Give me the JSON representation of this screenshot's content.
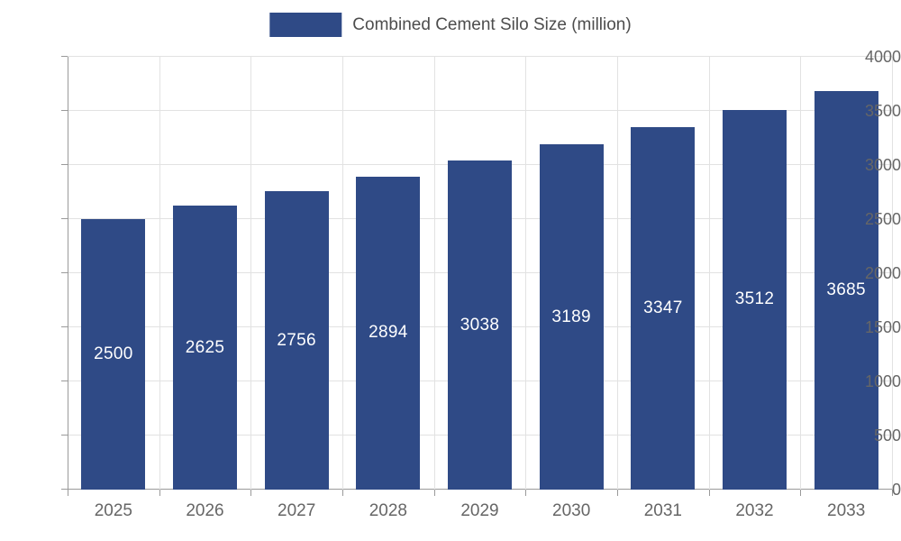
{
  "chart_data": {
    "type": "bar",
    "title": "Combined Cement Silo Size (million)",
    "categories": [
      "2025",
      "2026",
      "2027",
      "2028",
      "2029",
      "2030",
      "2031",
      "2032",
      "2033"
    ],
    "values": [
      2500,
      2625,
      2756,
      2894,
      3038,
      3189,
      3347,
      3512,
      3685
    ],
    "xlabel": "",
    "ylabel": "",
    "ylim": [
      0,
      4000
    ],
    "ytick_step": 500,
    "ytick_labels": [
      "0",
      "500",
      "1000",
      "1500",
      "2000",
      "2500",
      "3000",
      "3500",
      "4000"
    ],
    "grid": true,
    "legend_position": "top-center",
    "value_labels": "inside-center",
    "colors": {
      "bar": "#2F4A86",
      "value_label": "#ffffff",
      "gridline": "#e2e2e2",
      "axis_line": "#9a9a9a",
      "tick_label": "#666666",
      "legend_text": "#4d4d4d"
    }
  }
}
